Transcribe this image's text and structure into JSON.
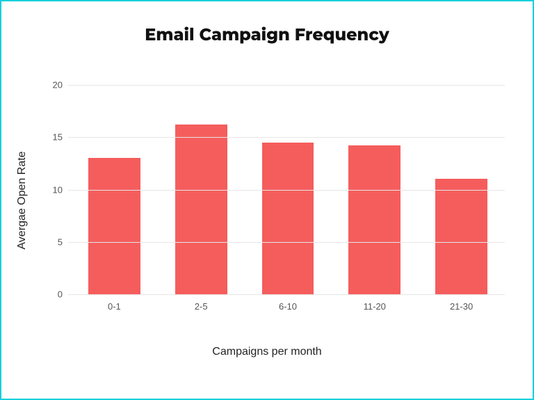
{
  "chart": {
    "type": "bar",
    "title": "Email Campaign Frequency",
    "title_fontsize": 24,
    "title_weight": 800,
    "title_color": "#111111",
    "xlabel": "Campaigns per month",
    "ylabel": "Avergae Open Rate",
    "label_fontsize": 16,
    "label_color": "#222222",
    "categories": [
      "0-1",
      "2-5",
      "6-10",
      "11-20",
      "21-30"
    ],
    "values": [
      13.0,
      16.2,
      14.5,
      14.2,
      11.0
    ],
    "bar_color": "#f55d5d",
    "ylim": [
      0,
      20
    ],
    "ytick_step": 5,
    "yticks": [
      0,
      5,
      10,
      15,
      20
    ],
    "tick_fontsize": 13,
    "tick_color": "#555555",
    "grid_color": "#e6e6e6",
    "background_color": "#ffffff",
    "border_color": "#14d0db",
    "bar_width": 0.6
  }
}
